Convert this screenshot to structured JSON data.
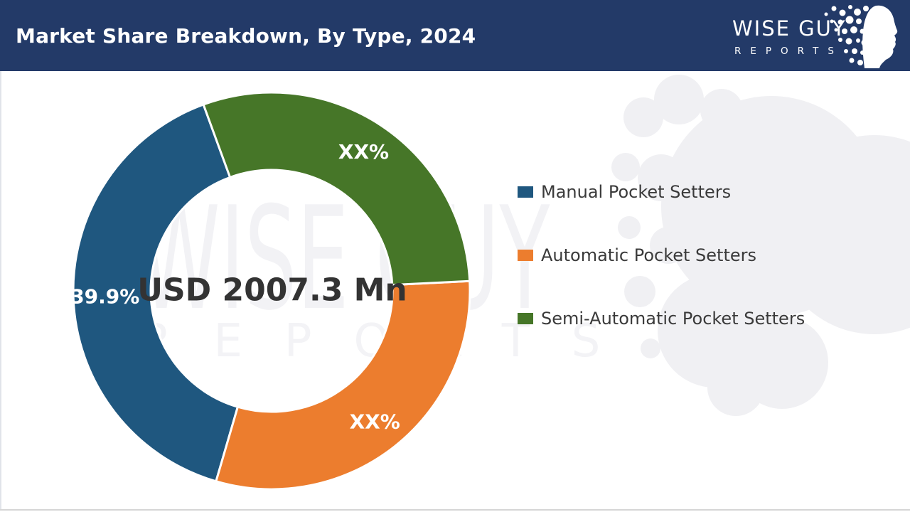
{
  "header": {
    "title": "Market Share Breakdown, By Type, 2024"
  },
  "logo": {
    "line1": "WISE GUY",
    "line2": "REPORTS"
  },
  "watermark": {
    "line1": "WISE GUY",
    "line2": "REPORTS"
  },
  "chart_data": {
    "type": "pie",
    "subtype": "donut",
    "title": "Market Share Breakdown, By Type, 2024",
    "center_label": "USD 2007.3 Mn",
    "direction": "counterclockwise",
    "start_angle_deg": 110.1,
    "legend_position": "right",
    "categories": [
      "Manual Pocket Setters",
      "Automatic Pocket Setters",
      "Semi-Automatic Pocket Setters"
    ],
    "slices": [
      {
        "name": "Manual Pocket Setters",
        "label": "39.9%",
        "value": 39.9,
        "color": "#1F577F"
      },
      {
        "name": "Automatic Pocket Setters",
        "label": "XX%",
        "value": 30.3,
        "color": "#EC7D2E"
      },
      {
        "name": "Semi-Automatic Pocket Setters",
        "label": "XX%",
        "value": 29.8,
        "color": "#467628"
      }
    ]
  },
  "colors": {
    "header_bg": "#233A68",
    "slice_blue": "#1F577F",
    "slice_orange": "#EC7D2E",
    "slice_green": "#467628",
    "center_text": "#333333",
    "legend_text": "#3A3A3A",
    "slice_label_text": "#FFFFFF",
    "watermark": "#F2F2F5"
  }
}
